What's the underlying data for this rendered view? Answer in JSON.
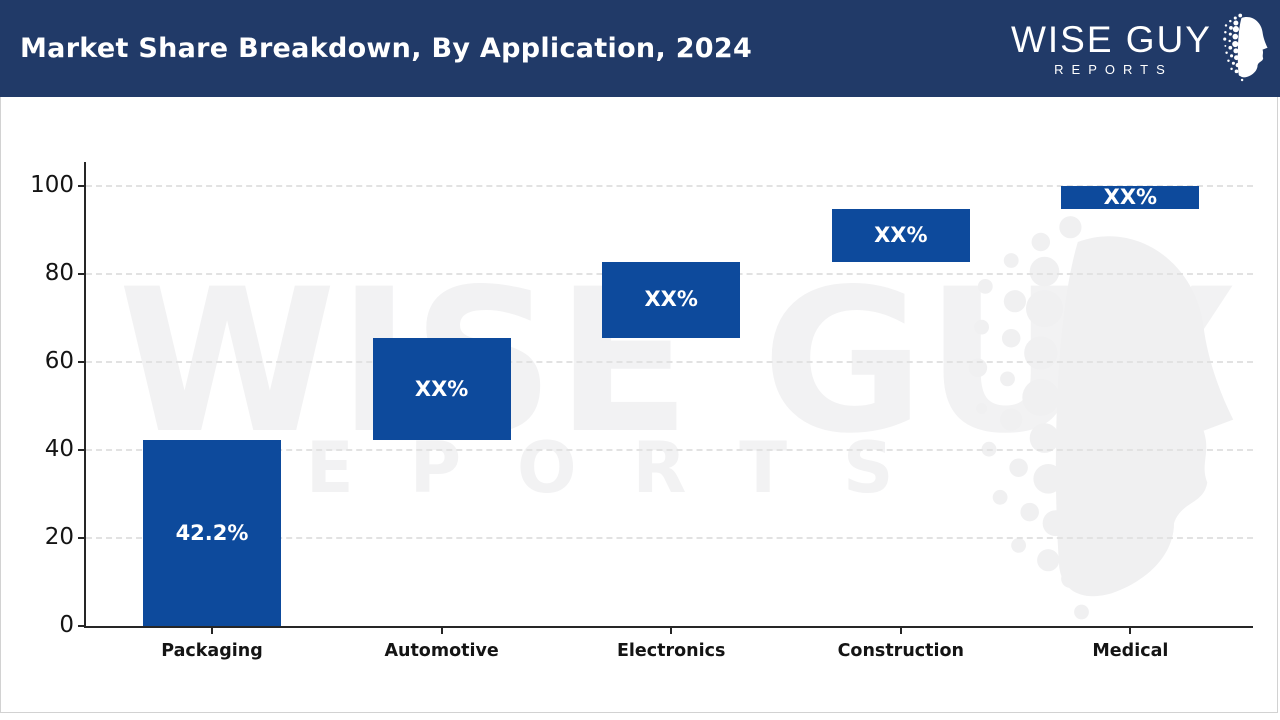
{
  "header": {
    "title": "Market Share Breakdown, By Application, 2024",
    "logo": {
      "wordmark": "WISE GUY",
      "subtitle": "REPORTS"
    }
  },
  "watermark": {
    "line1": "WISE GUY",
    "line2": "REPORTS"
  },
  "chart_data": {
    "type": "bar",
    "subtype": "waterfall",
    "title": "Market Share Breakdown, By Application, 2024",
    "categories": [
      "Packaging",
      "Automotive",
      "Electronics",
      "Construction",
      "Medical"
    ],
    "segments": [
      {
        "category": "Packaging",
        "start": 0,
        "end": 42.2,
        "label": "42.2%"
      },
      {
        "category": "Automotive",
        "start": 42.2,
        "end": 65.5,
        "label": "XX%"
      },
      {
        "category": "Electronics",
        "start": 65.5,
        "end": 82.7,
        "label": "XX%"
      },
      {
        "category": "Construction",
        "start": 82.7,
        "end": 94.8,
        "label": "XX%"
      },
      {
        "category": "Medical",
        "start": 94.8,
        "end": 100,
        "label": "XX%"
      }
    ],
    "yticks": [
      0,
      20,
      40,
      60,
      80,
      100
    ],
    "ylim": [
      0,
      105
    ],
    "grid": true,
    "xlabel": "",
    "ylabel": "",
    "bar_color": "#0d4a9c",
    "label_color": "#ffffff",
    "axis_color": "#262626",
    "gridline_color": "#e2e2e2",
    "header_color": "#213a68"
  }
}
